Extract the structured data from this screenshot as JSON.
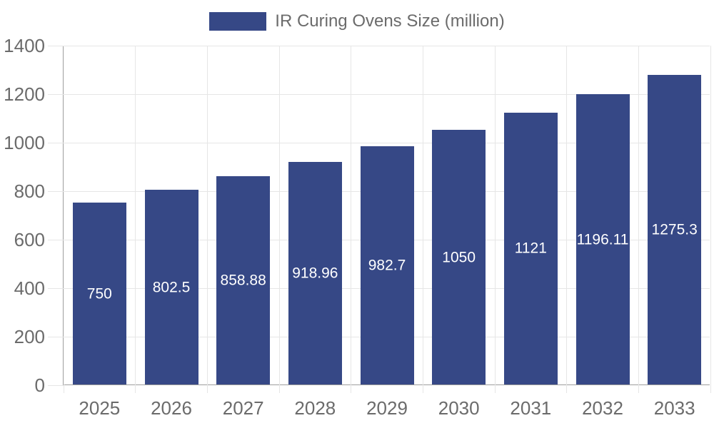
{
  "chart_data": {
    "type": "bar",
    "title": "IR Curing Ovens Size (million)",
    "categories": [
      "2025",
      "2026",
      "2027",
      "2028",
      "2029",
      "2030",
      "2031",
      "2032",
      "2033"
    ],
    "values": [
      750,
      802.5,
      858.88,
      918.96,
      982.7,
      1050,
      1121,
      1196.11,
      1275.3
    ],
    "value_labels": [
      "750",
      "802.5",
      "858.88",
      "918.96",
      "982.7",
      "1050",
      "1121",
      "1196.11",
      "1275.3"
    ],
    "xlabel": "",
    "ylabel": "",
    "ylim": [
      0,
      1400
    ],
    "ytick_step": 200,
    "ytick_labels": [
      "0",
      "200",
      "400",
      "600",
      "800",
      "1000",
      "1200",
      "1400"
    ],
    "grid": true,
    "legend_position": "top-center",
    "colors": {
      "bar": "#364886",
      "gridline": "#e6e6e6",
      "axis_border": "#9e9e9e",
      "axis_text": "#6b6b6b",
      "value_label": "#ffffff"
    }
  }
}
